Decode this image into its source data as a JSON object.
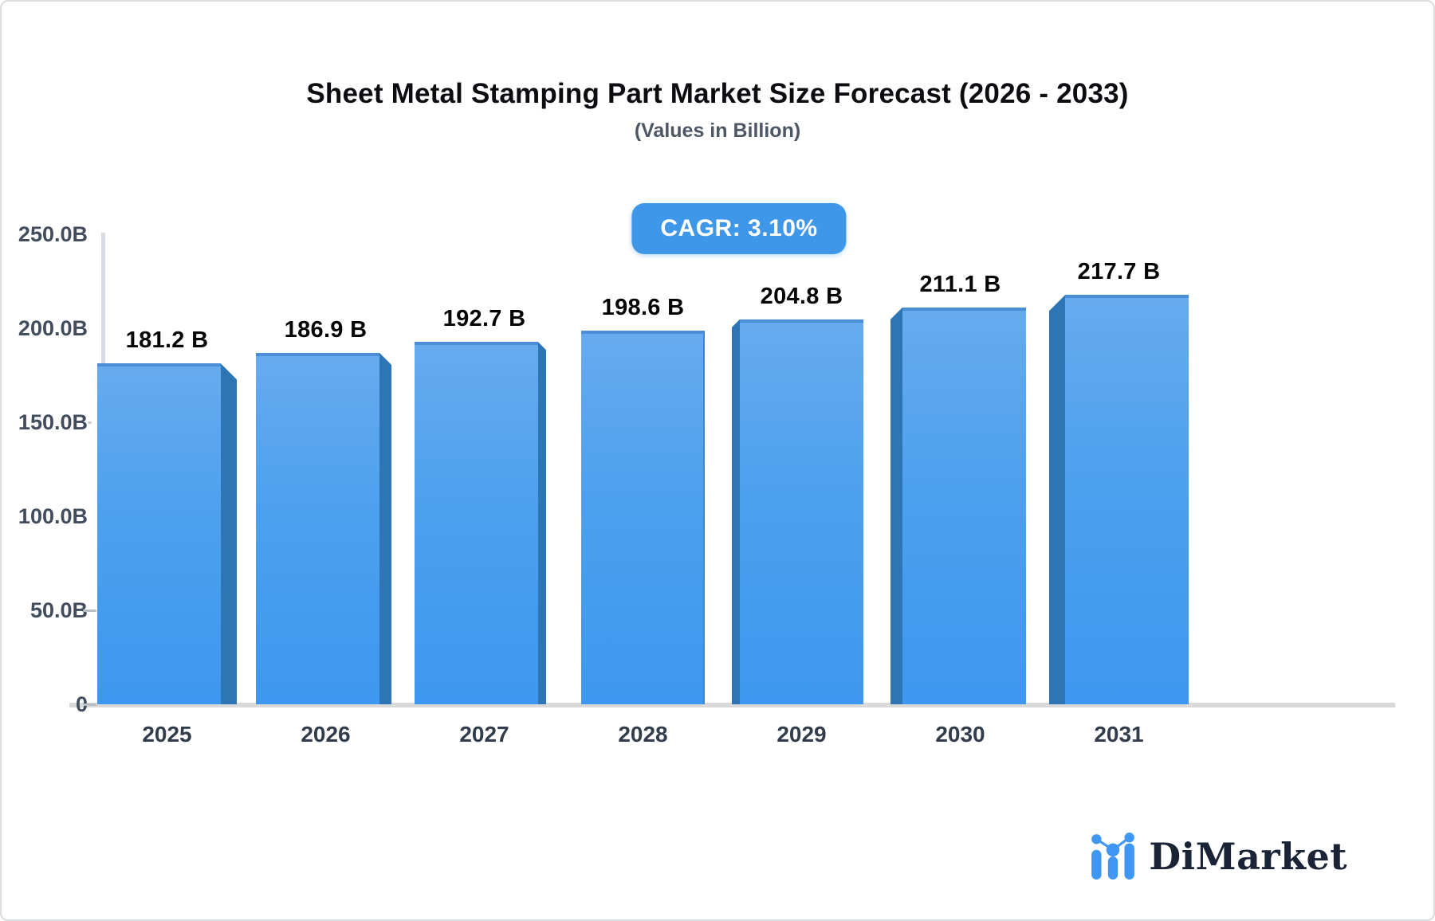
{
  "title": "Sheet Metal Stamping Part Market Size Forecast (2026 - 2033)",
  "subtitle": "(Values in Billion)",
  "cagr_badge": "CAGR: 3.10%",
  "chart_data": {
    "type": "bar",
    "title": "Sheet Metal Stamping Part Market Size Forecast (2026 - 2033)",
    "subtitle": "(Values in Billion)",
    "categories": [
      "2025",
      "2026",
      "2027",
      "2028",
      "2029",
      "2030",
      "2031"
    ],
    "values": [
      181.2,
      186.9,
      192.7,
      198.6,
      204.8,
      211.1,
      217.7
    ],
    "value_labels": [
      "181.2 B",
      "186.9 B",
      "192.7 B",
      "198.6 B",
      "204.8 B",
      "211.1 B",
      "217.7 B"
    ],
    "unit": "Billion",
    "cagr": "3.10%",
    "xlabel": "",
    "ylabel": "",
    "ylim": [
      0,
      250
    ],
    "yticks": [
      "250.0B",
      "200.0B",
      "150.0B",
      "100.0B",
      "50.0B",
      "0"
    ],
    "grid": false,
    "legend": false,
    "bar_color": "#3e97f0",
    "bar_side_color": "#2e75b6",
    "style": "3d-bars"
  },
  "colors": {
    "accent_blue": "#3f97ea",
    "bar_face": "#3e97f0",
    "bar_side": "#2e75b6",
    "axis_gray": "#d9d9d9",
    "label_dark": "#323d4b",
    "brand_navy": "#1a2437",
    "brand_blue": "#3f97f3"
  },
  "branding": {
    "logo_text": "DiMarket",
    "logo_icon": "mini-bar-line-chart-icon"
  }
}
